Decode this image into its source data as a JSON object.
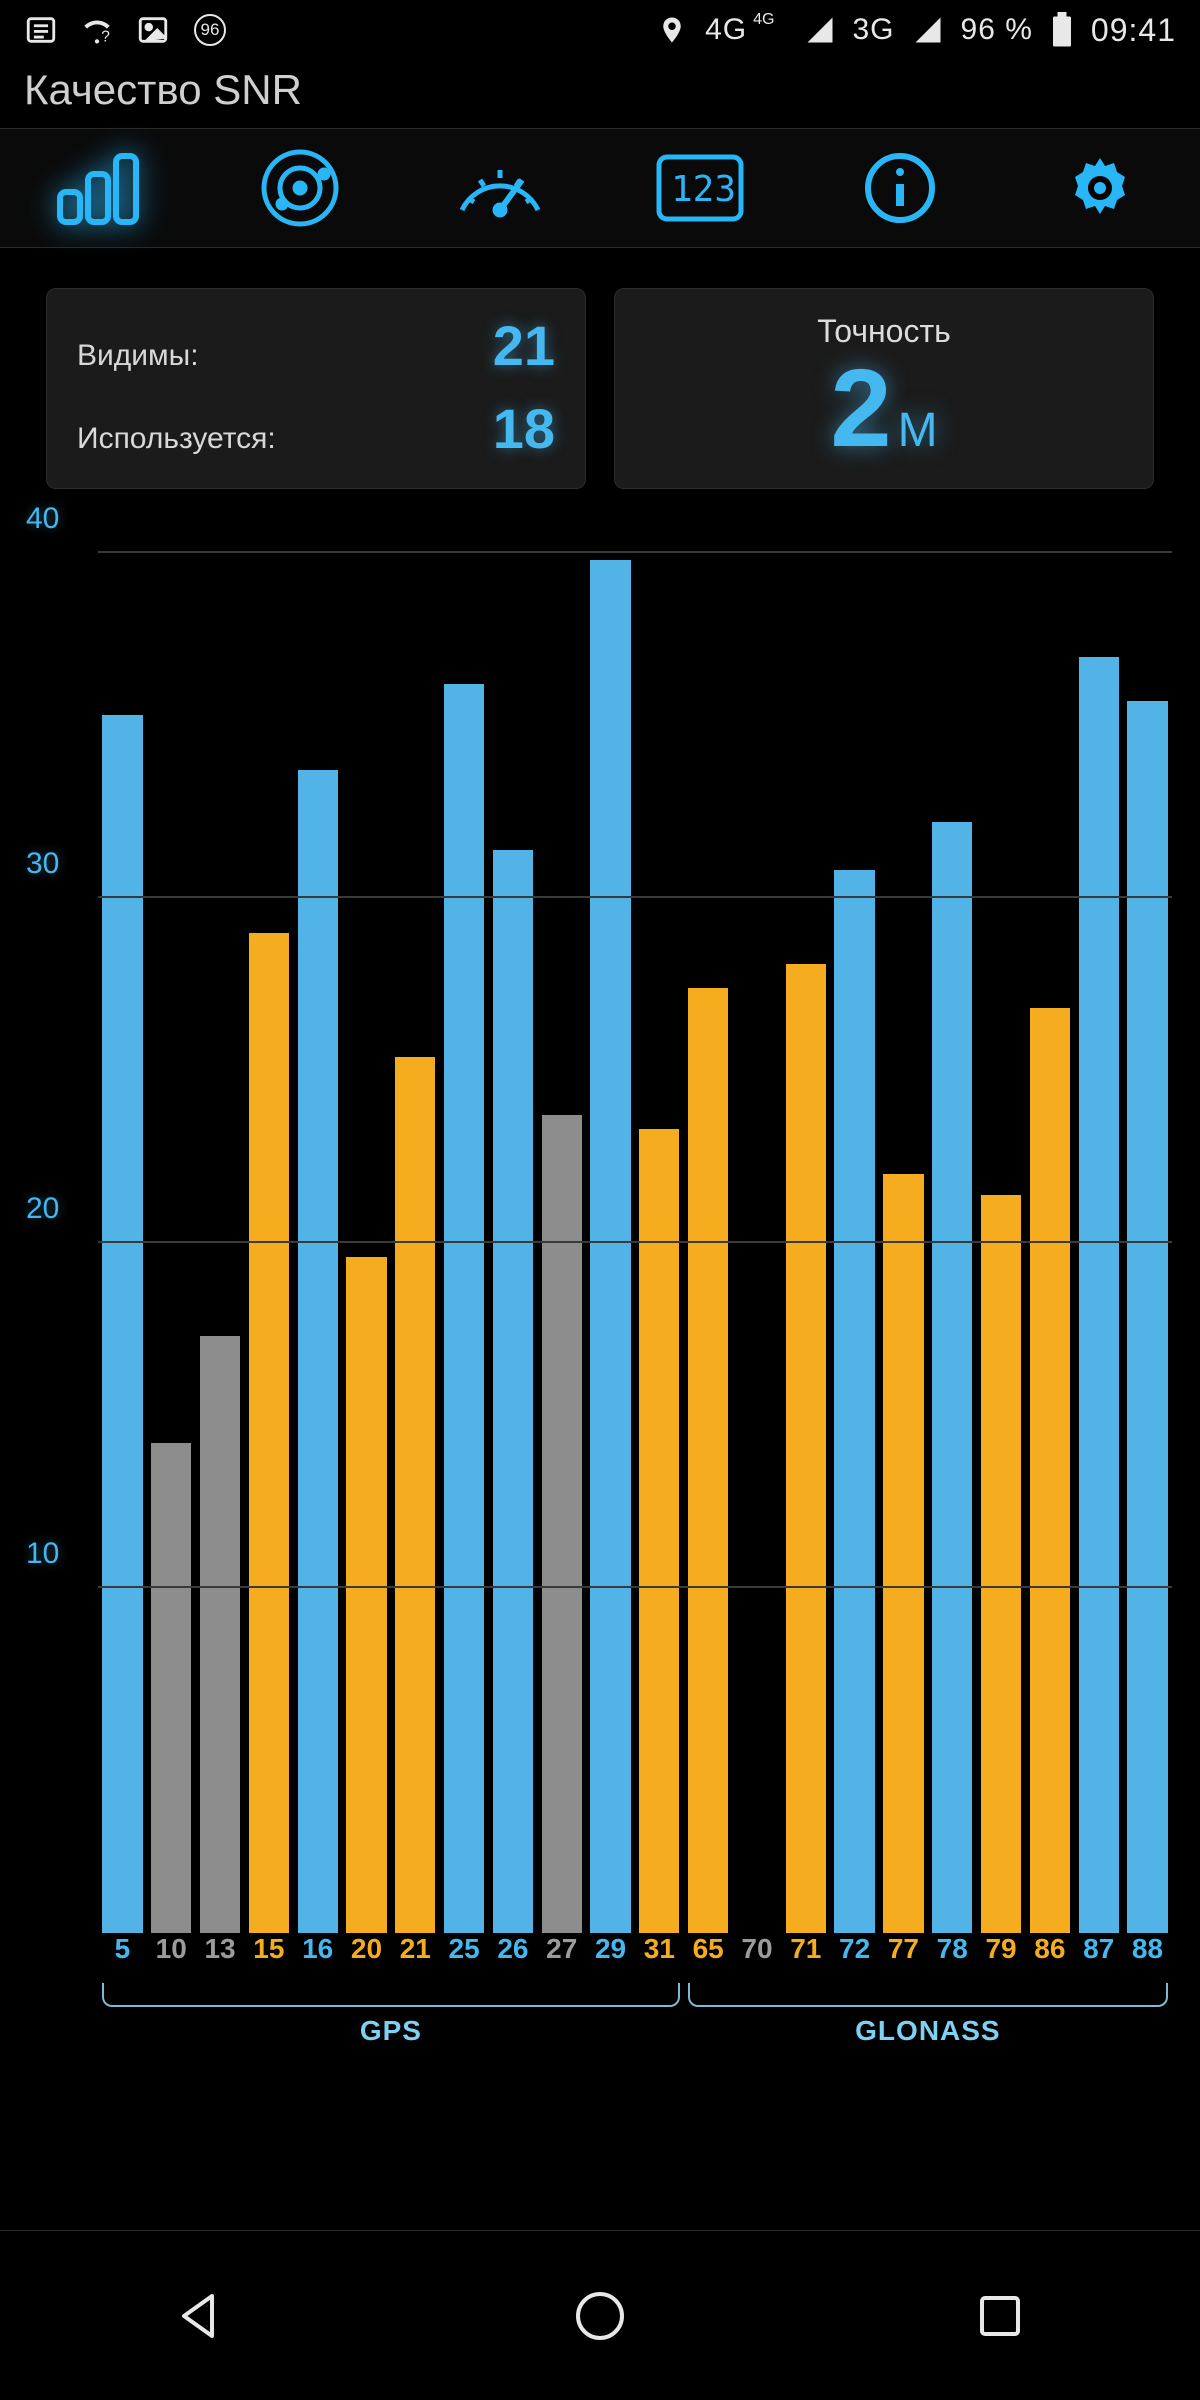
{
  "status": {
    "time": "09:41",
    "battery_pct": "96 %",
    "net_4g": "4G",
    "net_4g_sup": "4G",
    "net_3g": "3G",
    "badge_number": "96"
  },
  "app": {
    "title": "Качество SNR"
  },
  "tabs": {
    "items": [
      "signal-bars",
      "radar",
      "gauge",
      "digits",
      "info",
      "settings"
    ],
    "active_index": 0
  },
  "cards": {
    "visible_label": "Видимы:",
    "visible_value": "21",
    "used_label": "Используется:",
    "used_value": "18",
    "accuracy_label": "Точность",
    "accuracy_value": "2",
    "accuracy_unit": "М"
  },
  "chart": {
    "type": "bar",
    "y_ticks": [
      10,
      20,
      30,
      40
    ],
    "y_max": 40,
    "colors": {
      "used_blue": "#51b3e6",
      "unused_grey": "#8d8d8d",
      "used_orange": "#f5ad1f",
      "grid": "#3a3a3a",
      "label_blue": "#45b8f0",
      "label_grey": "#9c9c9c",
      "label_orange": "#f5ad1f"
    },
    "bars": [
      {
        "id": "5",
        "snr": 35.3,
        "color_key": "used_blue",
        "label_color_key": "label_blue",
        "group": "GPS"
      },
      {
        "id": "10",
        "snr": 14.2,
        "color_key": "unused_grey",
        "label_color_key": "label_grey",
        "group": "GPS"
      },
      {
        "id": "13",
        "snr": 17.3,
        "color_key": "unused_grey",
        "label_color_key": "label_grey",
        "group": "GPS"
      },
      {
        "id": "15",
        "snr": 29.0,
        "color_key": "used_orange",
        "label_color_key": "label_orange",
        "group": "GPS"
      },
      {
        "id": "16",
        "snr": 33.7,
        "color_key": "used_blue",
        "label_color_key": "label_blue",
        "group": "GPS"
      },
      {
        "id": "20",
        "snr": 19.6,
        "color_key": "used_orange",
        "label_color_key": "label_orange",
        "group": "GPS"
      },
      {
        "id": "21",
        "snr": 25.4,
        "color_key": "used_orange",
        "label_color_key": "label_orange",
        "group": "GPS"
      },
      {
        "id": "25",
        "snr": 36.2,
        "color_key": "used_blue",
        "label_color_key": "label_blue",
        "group": "GPS"
      },
      {
        "id": "26",
        "snr": 31.4,
        "color_key": "used_blue",
        "label_color_key": "label_blue",
        "group": "GPS"
      },
      {
        "id": "27",
        "snr": 23.7,
        "color_key": "unused_grey",
        "label_color_key": "label_grey",
        "group": "GPS"
      },
      {
        "id": "29",
        "snr": 39.8,
        "color_key": "used_blue",
        "label_color_key": "label_blue",
        "group": "GPS"
      },
      {
        "id": "31",
        "snr": 23.3,
        "color_key": "used_orange",
        "label_color_key": "label_orange",
        "group": "GPS"
      },
      {
        "id": "65",
        "snr": 27.4,
        "color_key": "used_orange",
        "label_color_key": "label_orange",
        "group": "GLONASS"
      },
      {
        "id": "70",
        "snr": 0.0,
        "color_key": "unused_grey",
        "label_color_key": "label_grey",
        "group": "GLONASS"
      },
      {
        "id": "71",
        "snr": 28.1,
        "color_key": "used_orange",
        "label_color_key": "label_orange",
        "group": "GLONASS"
      },
      {
        "id": "72",
        "snr": 30.8,
        "color_key": "used_blue",
        "label_color_key": "label_blue",
        "group": "GLONASS"
      },
      {
        "id": "77",
        "snr": 22.0,
        "color_key": "used_orange",
        "label_color_key": "label_orange",
        "group": "GLONASS"
      },
      {
        "id": "78",
        "snr": 32.2,
        "color_key": "used_blue",
        "label_color_key": "label_blue",
        "group": "GLONASS"
      },
      {
        "id": "79",
        "snr": 21.4,
        "color_key": "used_orange",
        "label_color_key": "label_orange",
        "group": "GLONASS"
      },
      {
        "id": "86",
        "snr": 26.8,
        "color_key": "used_orange",
        "label_color_key": "label_orange",
        "group": "GLONASS"
      },
      {
        "id": "87",
        "snr": 37.0,
        "color_key": "used_blue",
        "label_color_key": "label_blue",
        "group": "GLONASS"
      },
      {
        "id": "88",
        "snr": 35.7,
        "color_key": "used_blue",
        "label_color_key": "label_blue",
        "group": "GLONASS"
      }
    ],
    "constellations": [
      {
        "name": "GPS",
        "span": 12
      },
      {
        "name": "GLONASS",
        "span": 10
      }
    ]
  }
}
